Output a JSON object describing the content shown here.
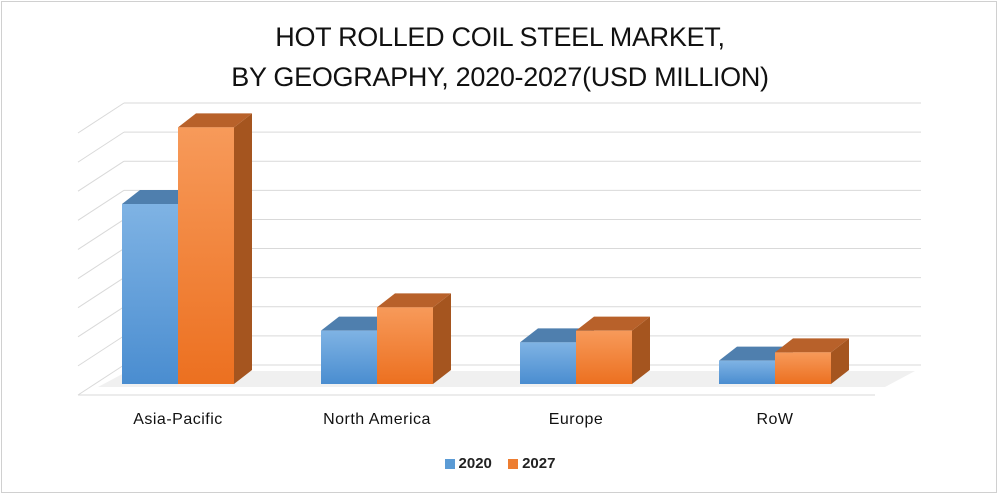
{
  "chart_data": {
    "type": "bar",
    "title_lines": [
      "HOT ROLLED COIL STEEL MARKET,",
      "BY GEOGRAPHY, 2020-2027(USD MILLION)"
    ],
    "categories": [
      "Asia-Pacific",
      "North America",
      "Europe",
      "RoW"
    ],
    "series": [
      {
        "name": "2020",
        "values": [
          5.4,
          1.6,
          1.25,
          0.7
        ],
        "color": "#5b9bd5"
      },
      {
        "name": "2027",
        "values": [
          7.7,
          2.3,
          1.6,
          0.95
        ],
        "color": "#ed7d31"
      }
    ],
    "ylim": [
      0,
      9
    ],
    "grid": true,
    "legend_position": "bottom",
    "style": "3d-clustered-column"
  }
}
